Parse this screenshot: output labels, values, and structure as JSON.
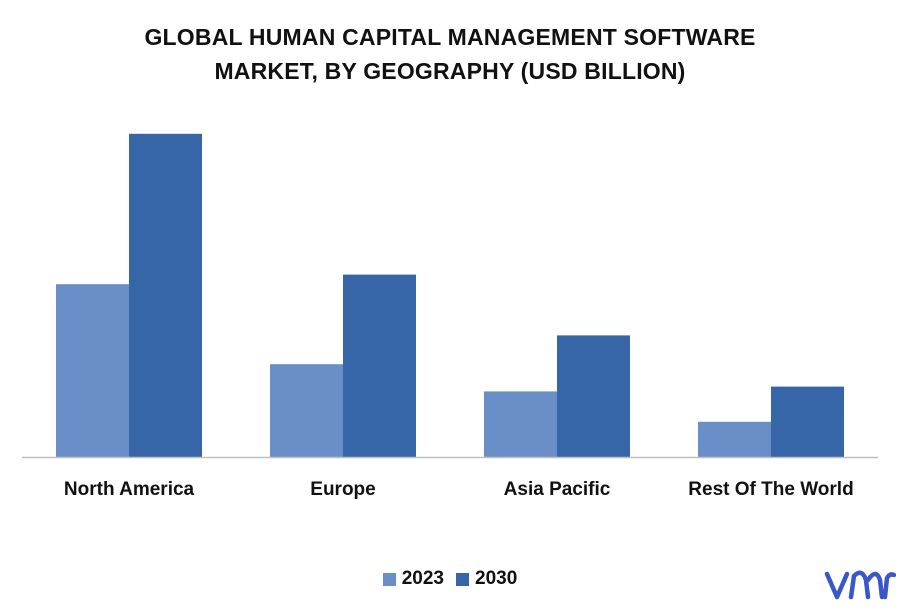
{
  "chart_data": {
    "type": "bar",
    "title": "GLOBAL HUMAN CAPITAL MANAGEMENT SOFTWARE MARKET, BY GEOGRAPHY (USD BILLION)",
    "title_lines": [
      "GLOBAL HUMAN CAPITAL MANAGEMENT SOFTWARE",
      "MARKET, BY GEOGRAPHY (USD BILLION)"
    ],
    "categories": [
      "North America",
      "Europe",
      "Asia Pacific",
      "Rest Of The World"
    ],
    "series": [
      {
        "name": "2023",
        "values": [
          5.4,
          2.9,
          2.05,
          1.1
        ],
        "color": "#6a8fc8"
      },
      {
        "name": "2030",
        "values": [
          10.1,
          5.7,
          3.8,
          2.2
        ],
        "color": "#3766a8"
      }
    ],
    "ylim": [
      0,
      11
    ],
    "grid": false,
    "legend_position": "bottom-center",
    "xlabel": "",
    "ylabel": ""
  },
  "logo": {
    "icon": "vmr-logo-icon",
    "color": "#3a57c9"
  }
}
